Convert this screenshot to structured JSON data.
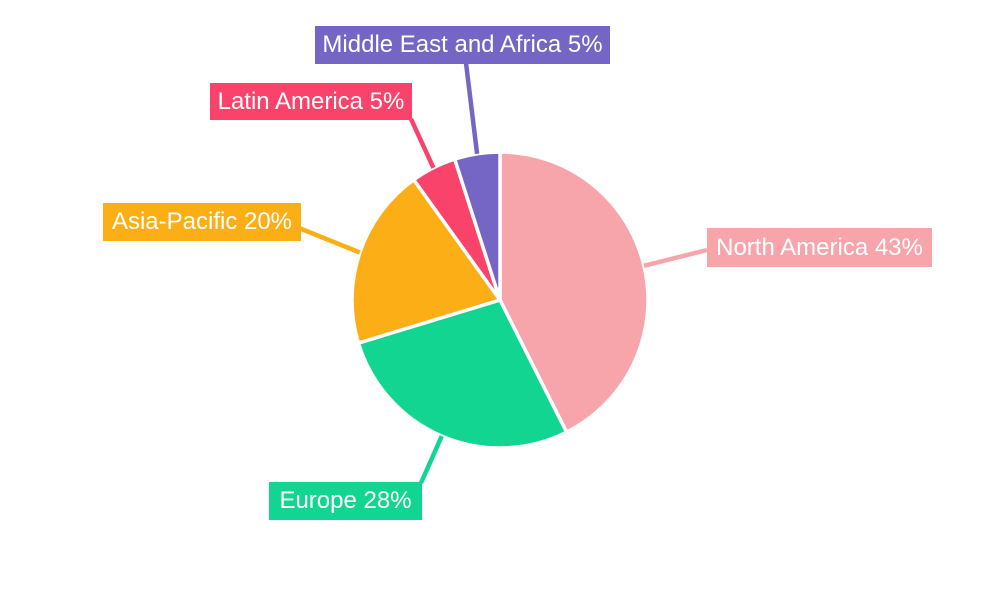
{
  "page": {
    "background": "#ffffff"
  },
  "chart_data": {
    "type": "pie",
    "title": "",
    "legend": false,
    "start_angle": "top",
    "direction": "clockwise",
    "label_text_color": "#ffffff",
    "separator_color": "#ffffff",
    "slices": [
      {
        "label": "North America",
        "value": 43,
        "unit": "%",
        "color": "#f7a5aa",
        "display": "North America 43%"
      },
      {
        "label": "Europe",
        "value": 28,
        "unit": "%",
        "color": "#12d592",
        "display": "Europe 28%"
      },
      {
        "label": "Asia-Pacific",
        "value": 20,
        "unit": "%",
        "color": "#fcae17",
        "display": "Asia-Pacific 20%"
      },
      {
        "label": "Latin America",
        "value": 5,
        "unit": "%",
        "color": "#f9436b",
        "display": "Latin America 5%"
      },
      {
        "label": "Middle East and Africa",
        "value": 5,
        "unit": "%",
        "color": "#7565c5",
        "display": "Middle East and Africa 5%"
      }
    ]
  }
}
